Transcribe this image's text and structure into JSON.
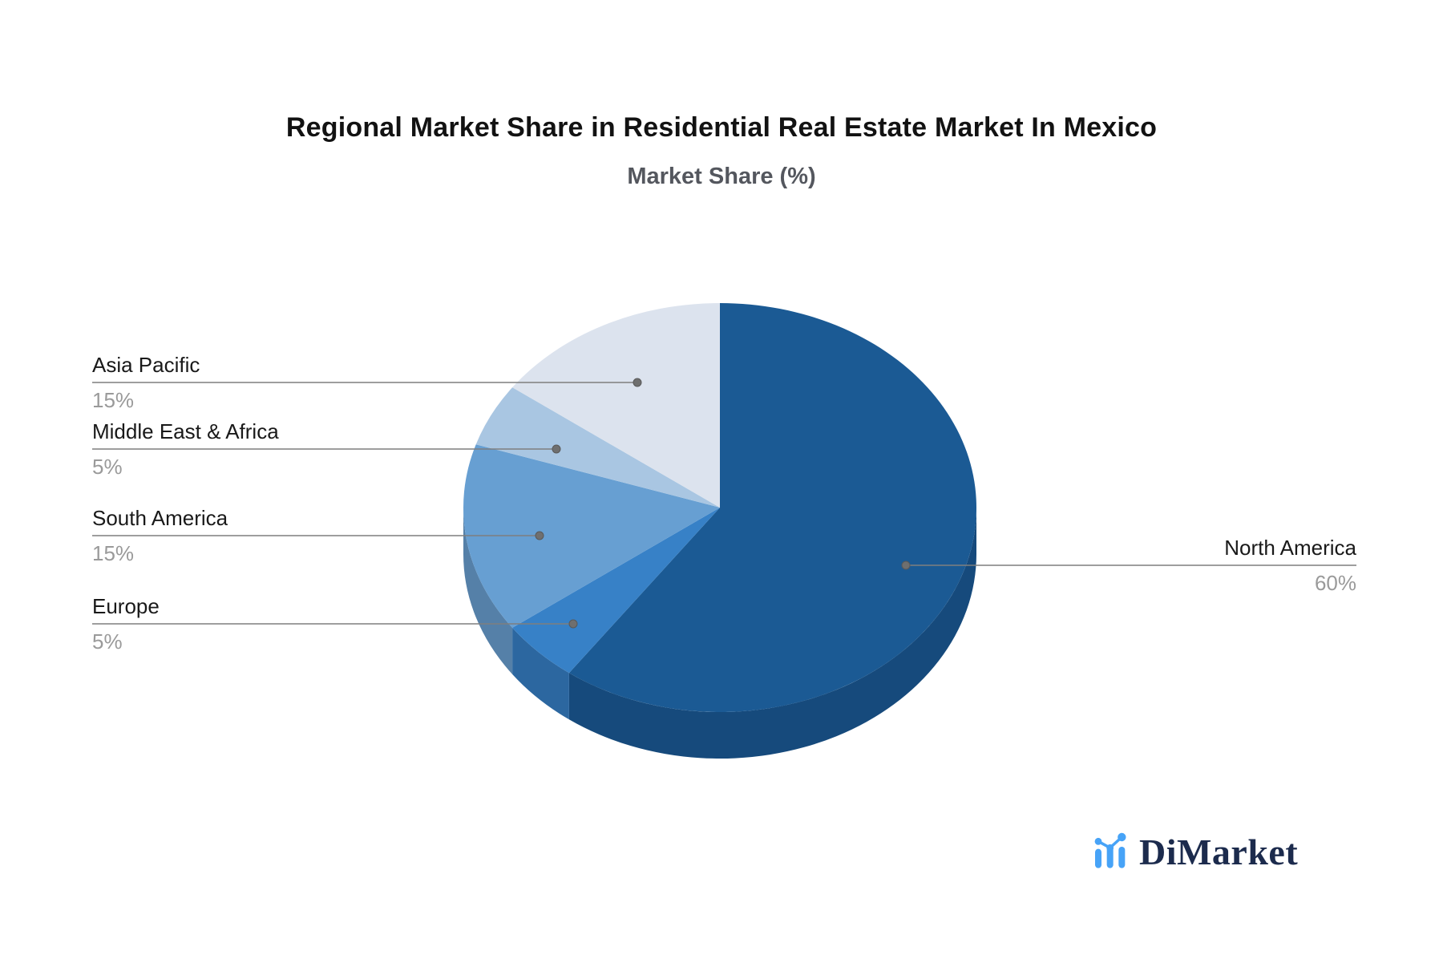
{
  "header": {
    "title": "Regional Market Share in Residential Real Estate Market In Mexico",
    "subtitle": "Market Share (%)"
  },
  "chart_data": {
    "type": "pie",
    "style": "3d-pie",
    "title": "Regional Market Share in Residential Real Estate Market In Mexico",
    "subtitle": "Market Share (%)",
    "unit": "%",
    "start_angle_deg": 0,
    "direction": "clockwise",
    "slices": [
      {
        "label": "North America",
        "value": 60,
        "pct_label": "60%",
        "color": "#1b5a94",
        "side_color": "#164a7c"
      },
      {
        "label": "Europe",
        "value": 5,
        "pct_label": "5%",
        "color": "#3781c7",
        "side_color": "#2c67a0"
      },
      {
        "label": "South America",
        "value": 15,
        "pct_label": "15%",
        "color": "#679fd2",
        "side_color": "#5580a8"
      },
      {
        "label": "Middle East & Africa",
        "value": 5,
        "pct_label": "5%",
        "color": "#a9c6e2",
        "side_color": "#8ba6c0"
      },
      {
        "label": "Asia Pacific",
        "value": 15,
        "pct_label": "15%",
        "color": "#dce3ee",
        "side_color": "#b6c1cf"
      }
    ],
    "label_line_color": "#7f7f7f",
    "label_dot_color": "#6f6f6f",
    "label_name_color": "#191919",
    "label_pct_color": "#9a9a9a",
    "legend_position": "callouts"
  },
  "callouts": [
    {
      "name": "Asia Pacific",
      "pct": "15%"
    },
    {
      "name": "Middle East & Africa",
      "pct": "5%"
    },
    {
      "name": "South America",
      "pct": "15%"
    },
    {
      "name": "Europe",
      "pct": "5%"
    },
    {
      "name": "North America",
      "pct": "60%"
    }
  ],
  "logo": {
    "text": "DiMarket",
    "brand_color": "#1c2b4d",
    "icon_color": "#47a3f7",
    "icon": "bar-line-chart-icon"
  }
}
